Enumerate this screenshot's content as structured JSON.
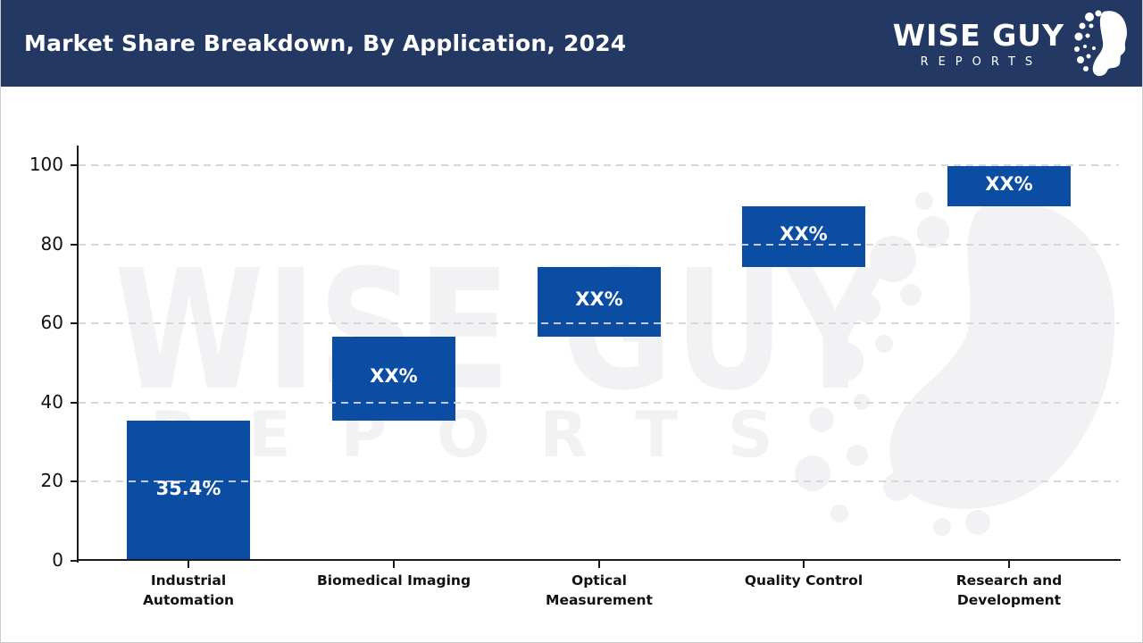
{
  "header": {
    "title": "Market Share Breakdown, By Application, 2024",
    "logo": {
      "wordmark": "WISE GUY",
      "sub": "REPORTS"
    }
  },
  "watermark": {
    "wordmark": "WISE GUY",
    "sub": "REPORTS"
  },
  "chart_data": {
    "type": "bar",
    "subtype": "waterfall",
    "title": "Market Share Breakdown, By Application, 2024",
    "categories": [
      "Industrial\nAutomation",
      "Biomedical Imaging",
      "Optical\nMeasurement",
      "Quality Control",
      "Research and\nDevelopment"
    ],
    "segments": [
      {
        "category": "Industrial Automation",
        "start": 0,
        "end": 35.4,
        "label": "35.4%"
      },
      {
        "category": "Biomedical Imaging",
        "start": 35.4,
        "end": 56.7,
        "label": "XX%"
      },
      {
        "category": "Optical Measurement",
        "start": 56.7,
        "end": 74.4,
        "label": "XX%"
      },
      {
        "category": "Quality Control",
        "start": 74.4,
        "end": 89.6,
        "label": "XX%"
      },
      {
        "category": "Research and Development",
        "start": 89.6,
        "end": 99.7,
        "label": "XX%"
      }
    ],
    "xlabel": "",
    "ylabel": "",
    "ylim": [
      0,
      100
    ],
    "yticks": [
      0,
      20,
      40,
      60,
      80,
      100
    ],
    "grid": {
      "axis": "y",
      "style": "dashed",
      "drawn_over_bars": true
    },
    "legend": "none",
    "colors": {
      "bar": "#0b4da2",
      "bar_label": "#ffffff",
      "grid": "#d5d5d8",
      "axis": "#1a1a1a",
      "header_bg": "#233963",
      "watermark": "#f2f2f4"
    }
  }
}
